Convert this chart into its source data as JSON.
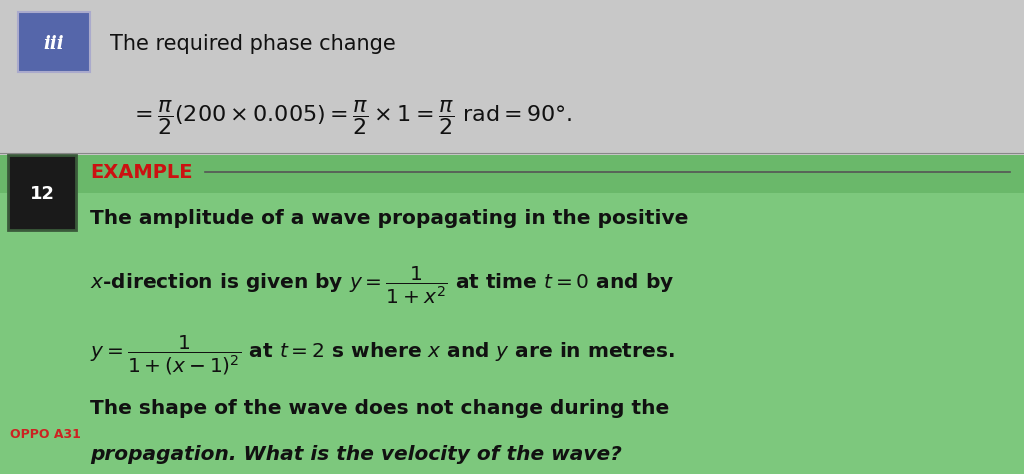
{
  "top_bg": "#c8c8c8",
  "green_bg": "#7dc87d",
  "iii_box_color": "#5566aa",
  "example_num_box_bg": "#1a1a1a",
  "example_num_box_border": "#3a5a3a",
  "header_text": "The required phase change",
  "eq_text": "$= \\dfrac{\\pi}{2}(200 \\times 0.005) = \\dfrac{\\pi}{2} \\times 1 = \\dfrac{\\pi}{2}\\ \\mathrm{rad} = 90°.$",
  "example_label": "EXAMPLE",
  "example_number": "12",
  "line1": "The amplitude of a wave propagating in the positive",
  "line2": "$x$-direction is given by $y = \\dfrac{1}{1+x^2}$ at time $t = 0$ and by",
  "line3": "$y = \\dfrac{1}{1+(x-1)^2}$ at $t = 2$ s where $x$ and $y$ are in metres.",
  "line4": "The shape of the wave does not change during the",
  "watermark": "OPPO A31",
  "line5": "propagation. What is the velocity of the wave?",
  "header_fs": 15,
  "eq_fs": 16,
  "content_fs": 14.5,
  "example_label_fs": 14,
  "example_num_fs": 13,
  "iii_fs": 13,
  "watermark_color": "#cc2222",
  "example_label_color": "#cc1111",
  "text_color": "#111111",
  "iii_text_color": "#ffffff"
}
